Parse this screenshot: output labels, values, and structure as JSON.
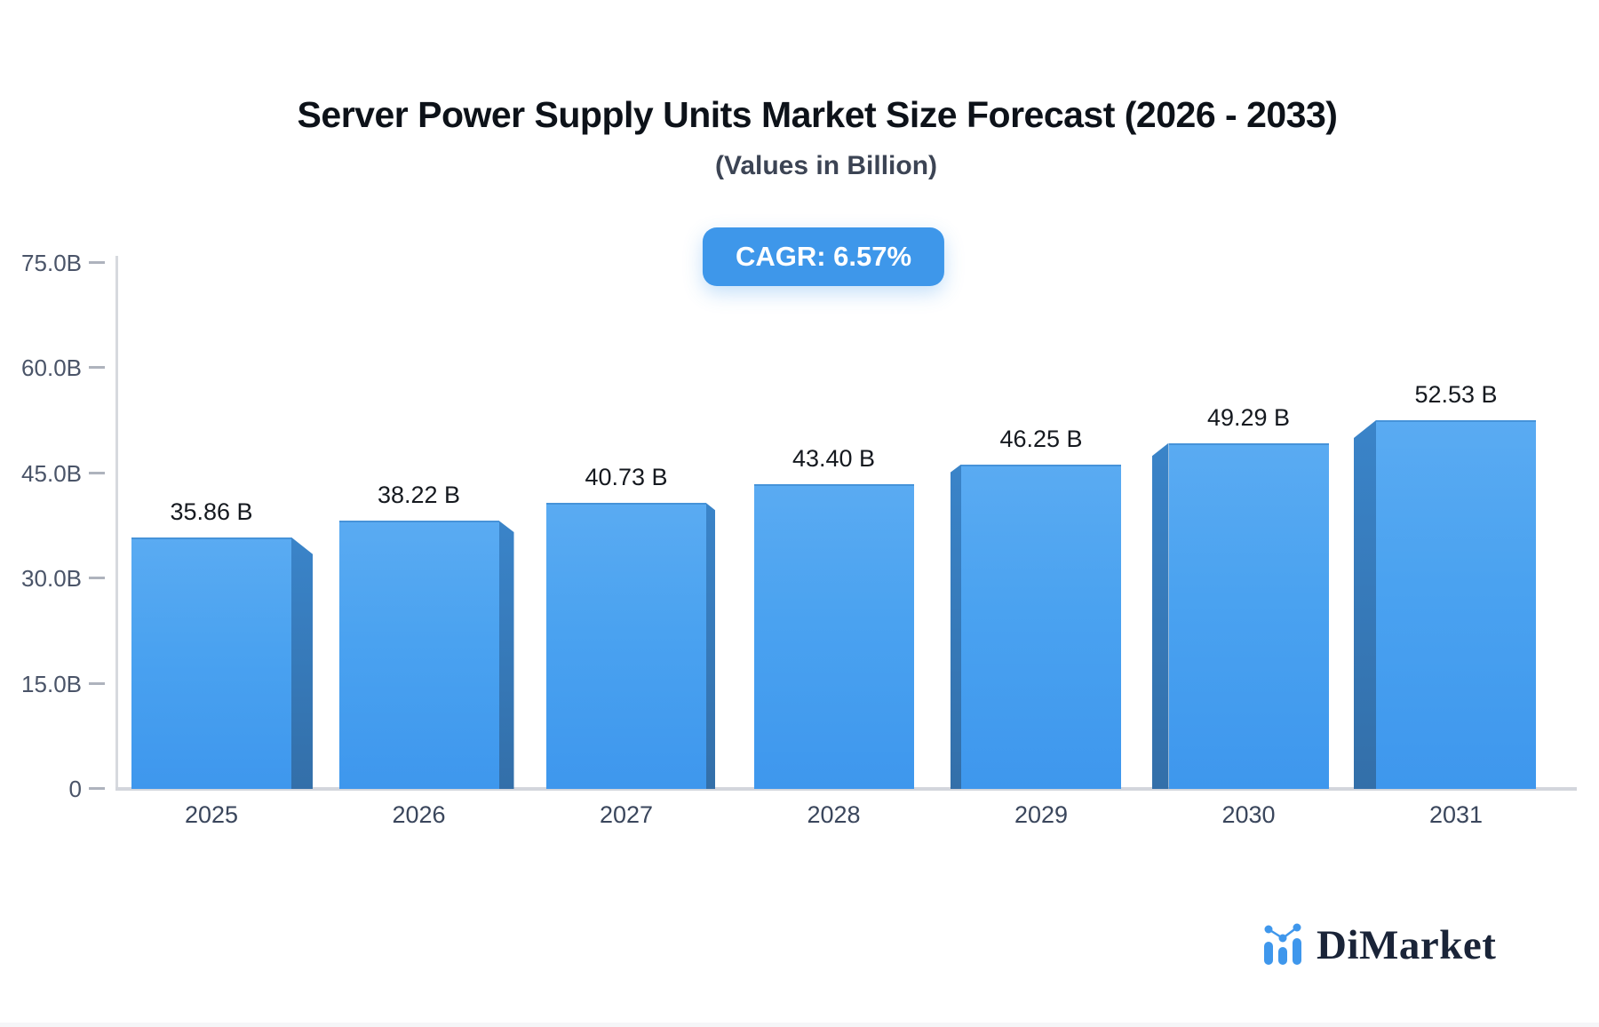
{
  "header": {
    "title": "Server Power Supply Units Market Size Forecast (2026 - 2033)",
    "subtitle": "(Values in Billion)",
    "cagr_badge": "CAGR: 6.57%"
  },
  "chart_data": {
    "type": "bar",
    "title": "Server Power Supply Units Market Size Forecast (2026 - 2033)",
    "subtitle": "(Values in Billion)",
    "annotation": "CAGR: 6.57%",
    "categories": [
      "2025",
      "2026",
      "2027",
      "2028",
      "2029",
      "2030",
      "2031"
    ],
    "values": [
      35.86,
      38.22,
      40.73,
      43.4,
      46.25,
      49.29,
      52.53
    ],
    "value_labels": [
      "35.86 B",
      "38.22 B",
      "40.73 B",
      "43.40 B",
      "46.25 B",
      "49.29 B",
      "52.53 B"
    ],
    "unit": "Billion",
    "ylim": [
      0,
      75
    ],
    "yticks": [
      0,
      15,
      30,
      45,
      60,
      75
    ],
    "ytick_labels": [
      "0",
      "15.0B",
      "30.0B",
      "45.0B",
      "60.0B",
      "75.0B"
    ],
    "grid": false,
    "legend": "none",
    "style_3d": true,
    "colors": {
      "bar_face_top": "#5aabf2",
      "bar_face_bottom": "#3e97ed",
      "bar_side": "#357ab9",
      "axis_line": "#d3d6dc",
      "tick_dash": "#aeb3bd",
      "y_label": "#4a5468",
      "x_label": "#3a465c",
      "value_label": "#15191f",
      "badge_bg": "#3e97ea",
      "badge_text": "#ffffff"
    }
  },
  "branding": {
    "logo_text": "DiMarket",
    "logo_icon": "bar-chart-trend-icon"
  }
}
